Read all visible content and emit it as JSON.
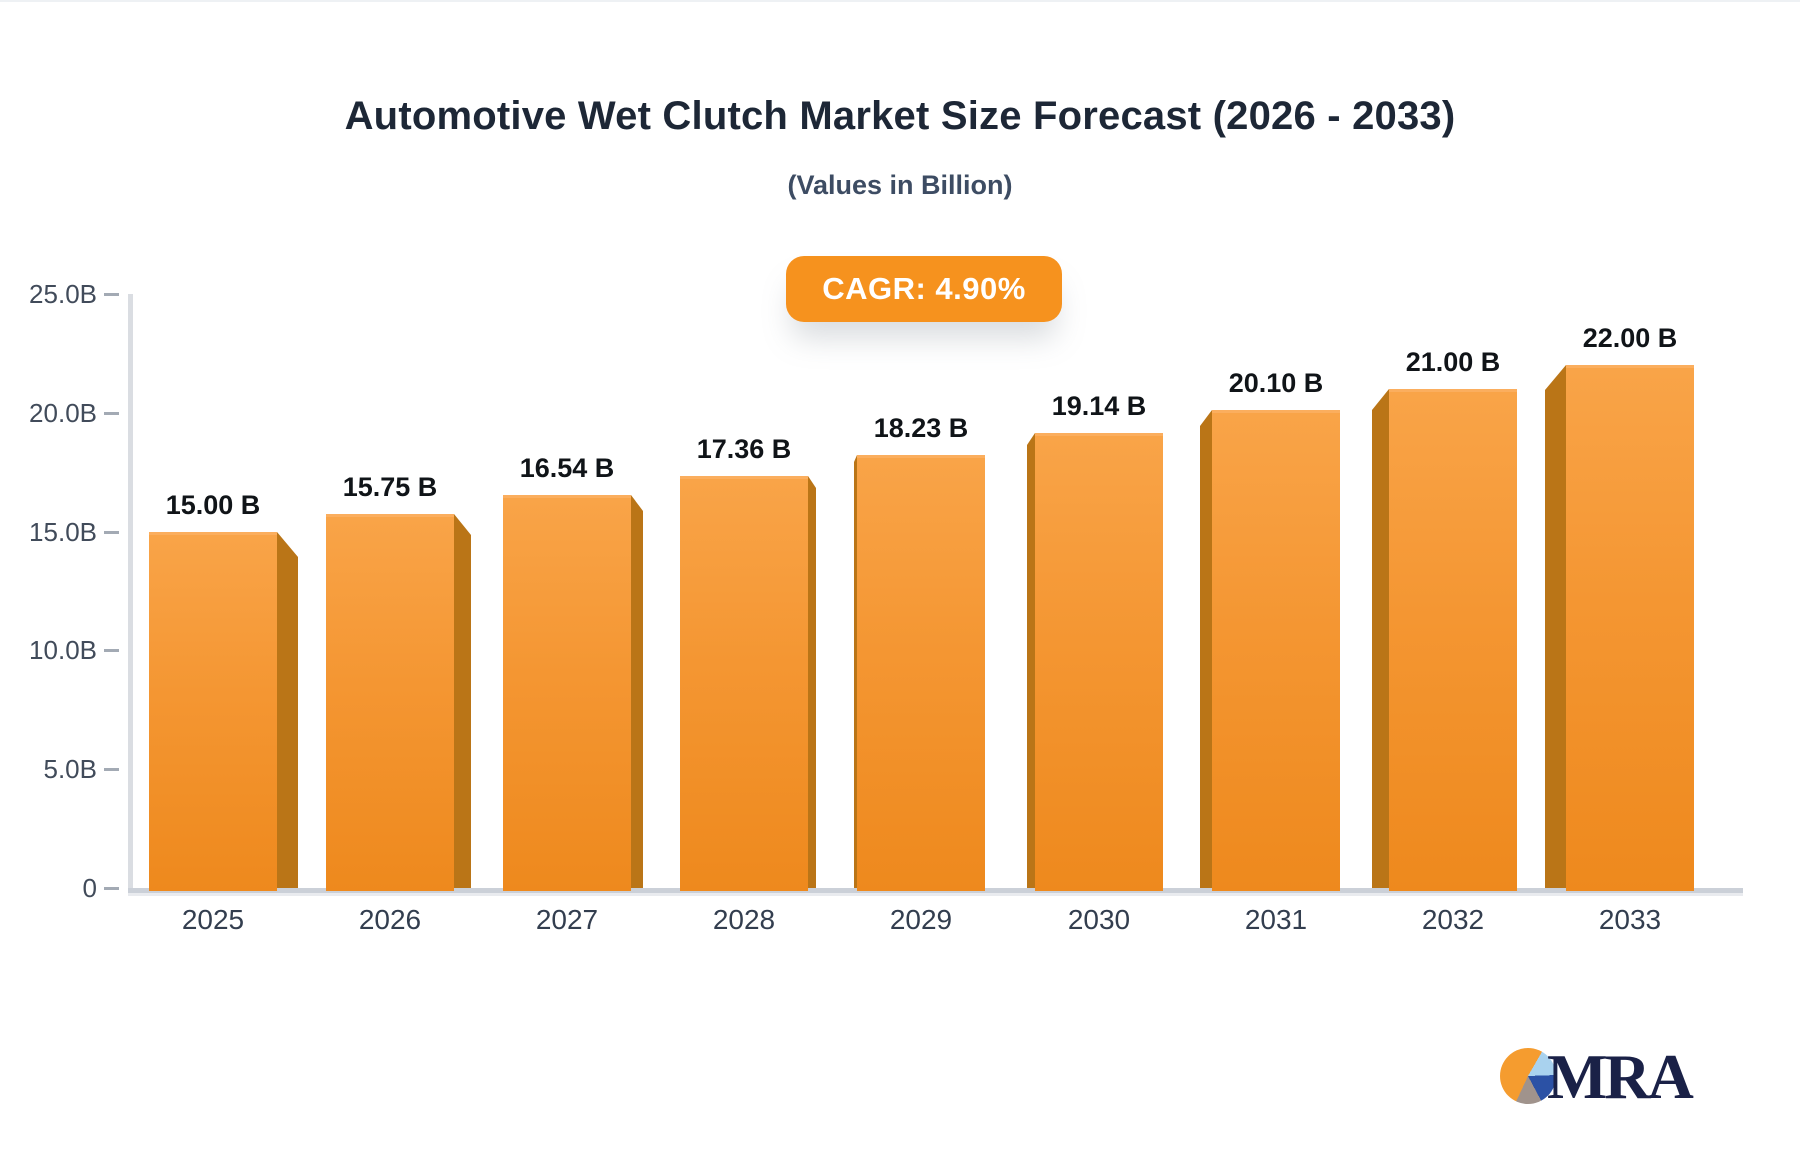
{
  "header": {
    "title": "Automotive Wet Clutch Market Size Forecast (2026 - 2033)",
    "subtitle": "(Values in Billion)"
  },
  "badge": {
    "label": "CAGR: 4.90%",
    "color": "#F6921E"
  },
  "chart_data": {
    "type": "bar",
    "title": "Automotive Wet Clutch Market Size Forecast (2026 - 2033)",
    "subtitle": "(Values in Billion)",
    "categories": [
      "2025",
      "2026",
      "2027",
      "2028",
      "2029",
      "2030",
      "2031",
      "2032",
      "2033"
    ],
    "values": [
      15.0,
      15.75,
      16.54,
      17.36,
      18.23,
      19.14,
      20.1,
      21.0,
      22.0
    ],
    "bar_labels": [
      "15.00 B",
      "15.75 B",
      "16.54 B",
      "17.36 B",
      "18.23 B",
      "19.14 B",
      "20.10 B",
      "21.00 B",
      "22.00 B"
    ],
    "xlabel": "",
    "ylabel": "",
    "ylim": [
      0,
      25
    ],
    "yticks": {
      "values": [
        0,
        5,
        10,
        15,
        20,
        25
      ],
      "labels": [
        "0",
        "5.0B",
        "10.0B",
        "15.0B",
        "20.0B",
        "25.0B"
      ]
    },
    "grid": false,
    "legend": false,
    "annotations": [
      "CAGR: 4.90%"
    ],
    "bar_color_top": "#F9A448",
    "bar_color_bottom": "#EE891D",
    "bar_side_color": "#BA7517",
    "style_3d": true
  },
  "logo": {
    "text": "MRA",
    "pie_orange": "#F59C2F",
    "pie_light_blue": "#A9D2EE",
    "pie_dark_blue": "#2B51A5",
    "pie_gray": "#A0938C",
    "text_color": "#1A2147"
  }
}
